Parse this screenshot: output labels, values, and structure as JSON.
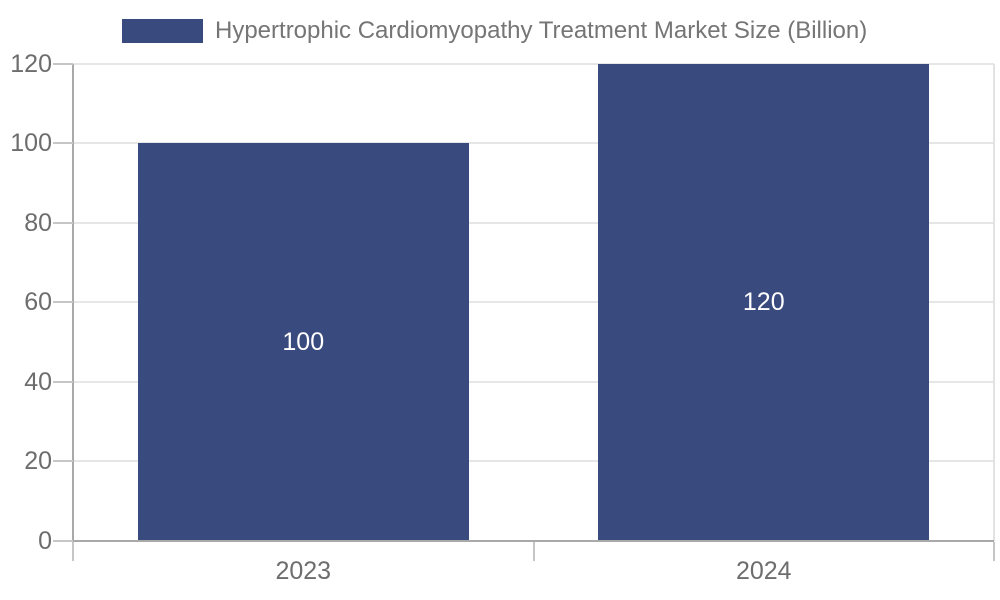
{
  "chart_data": {
    "type": "bar",
    "title": "Hypertrophic Cardiomyopathy Treatment Market Size (Billion)",
    "legend": [
      "Hypertrophic Cardiomyopathy Treatment Market Size (Billion)"
    ],
    "legend_position": "top-left",
    "categories": [
      "2023",
      "2024"
    ],
    "values": [
      100,
      120
    ],
    "bar_value_labels": [
      "100",
      "120"
    ],
    "xlabel": "",
    "ylabel": "",
    "ylim": [
      0,
      120
    ],
    "yticks": [
      0,
      20,
      40,
      60,
      80,
      100,
      120
    ],
    "grid": "horizontal",
    "colors": {
      "bar": "#394A7E",
      "gridline": "#e6e6e6",
      "axis": "#a9a9a9",
      "right_spine": "#e2e2e2",
      "tick_mark": "#c6c6c6",
      "tick_label": "#6d6d6d",
      "legend_text": "#757575",
      "value_label": "#ffffff",
      "background": "#ffffff"
    }
  }
}
